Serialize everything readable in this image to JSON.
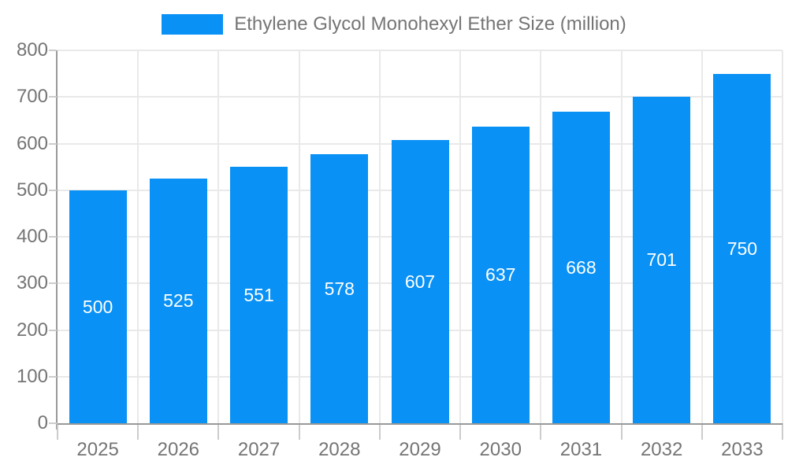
{
  "chart_data": {
    "type": "bar",
    "title": "",
    "legend": "Ethylene Glycol Monohexyl Ether Size (million)",
    "legend_position": "top",
    "categories": [
      "2025",
      "2026",
      "2027",
      "2028",
      "2029",
      "2030",
      "2031",
      "2032",
      "2033"
    ],
    "series": [
      {
        "name": "Ethylene Glycol Monohexyl Ether Size (million)",
        "values": [
          500,
          525,
          551,
          578,
          607,
          637,
          668,
          701,
          750
        ]
      }
    ],
    "xlabel": "",
    "ylabel": "",
    "ylim": [
      0,
      800
    ],
    "ytick_step": 100,
    "yticks": [
      0,
      100,
      200,
      300,
      400,
      500,
      600,
      700,
      800
    ],
    "grid": true,
    "data_labels": "inside-center",
    "colors": {
      "bar": "#0991f5",
      "grid": "#e9e9e9",
      "axis": "#999999",
      "tick": "#cccccc",
      "tick_label": "#757575",
      "bar_label": "#ffffff"
    }
  }
}
